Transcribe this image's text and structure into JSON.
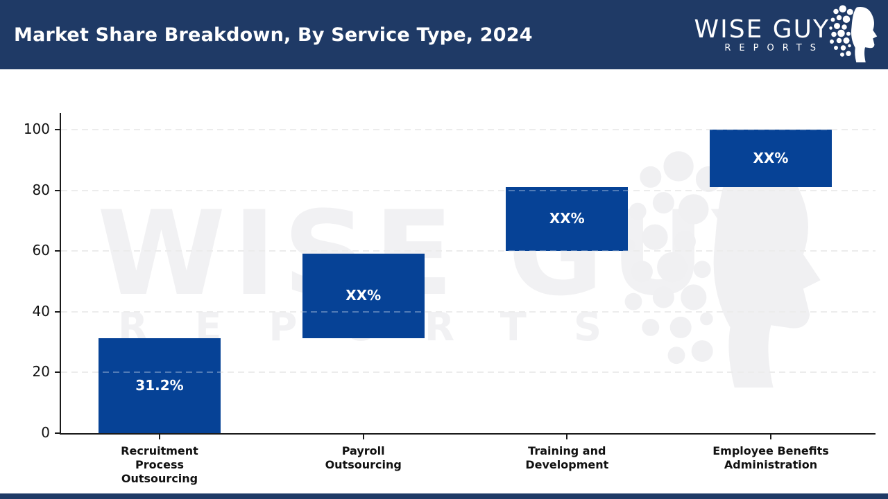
{
  "colors": {
    "navy": "#1F3A66",
    "bar_blue": "#064296",
    "grid": "#e4e4e4"
  },
  "header": {
    "title": "Market Share Breakdown, By Service Type, 2024",
    "logo": {
      "line1": "WISE GUY",
      "line2": "REPORTS"
    }
  },
  "watermark": {
    "line1": "WISE GUY",
    "line2": "REPORTS"
  },
  "chart_data": {
    "type": "bar",
    "subtype": "waterfall",
    "title": "Market Share Breakdown, By Service Type, 2024",
    "categories": [
      "Recruitment Process Outsourcing",
      "Payroll Outsourcing",
      "Training and Development",
      "Employee Benefits Administration"
    ],
    "categories_lines": [
      [
        "Recruitment",
        "Process",
        "Outsourcing"
      ],
      [
        "Payroll",
        "Outsourcing"
      ],
      [
        "Training and",
        "Development"
      ],
      [
        "Employee Benefits",
        "Administration"
      ]
    ],
    "segments": [
      {
        "label": "31.2%",
        "start": 0,
        "end": 31.2
      },
      {
        "label": "XX%",
        "start": 31.2,
        "end": 59.2
      },
      {
        "label": "XX%",
        "start": 60,
        "end": 81
      },
      {
        "label": "XX%",
        "start": 81,
        "end": 100
      }
    ],
    "ylim": [
      0,
      100
    ],
    "yticks": [
      0,
      20,
      40,
      60,
      80,
      100
    ],
    "xlabel": "",
    "ylabel": "",
    "grid": "horizontal-dashed",
    "legend": "none",
    "bar_color": "#064296"
  }
}
